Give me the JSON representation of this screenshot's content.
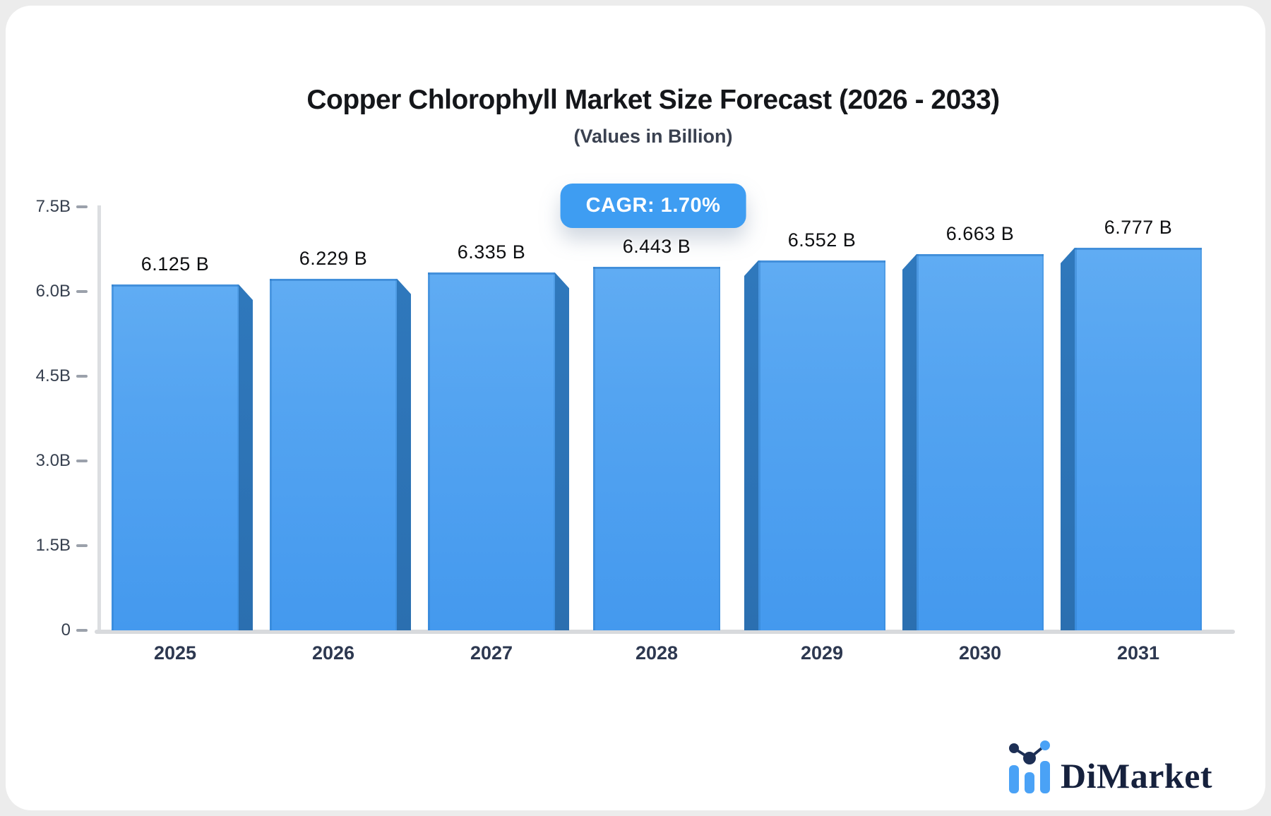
{
  "page": {
    "background": "#ececec",
    "card_background": "#ffffff"
  },
  "header": {
    "title": "Copper Chlorophyll Market Size Forecast (2026 - 2033)",
    "subtitle": "(Values in Billion)",
    "cagr_label": "CAGR: 1.70%"
  },
  "brand": {
    "name": "DiMarket"
  },
  "colors": {
    "bar_face_top": "#60acf3",
    "bar_face_bottom": "#4499ee",
    "bar_side": "#2d73b6",
    "badge_background": "#3e9df2",
    "axis_line": "#dcdee1",
    "tick_dash": "#9ba1ab",
    "logo_bar_blue": "#4aa2f6",
    "logo_navy": "#1d2f55"
  },
  "chart_data": {
    "type": "bar",
    "title": "Copper Chlorophyll Market Size Forecast (2026 - 2033)",
    "subtitle": "(Values in Billion)",
    "unit": "Billion",
    "cagr": "1.70%",
    "categories": [
      "2025",
      "2026",
      "2027",
      "2028",
      "2029",
      "2030",
      "2031"
    ],
    "values": [
      6.125,
      6.229,
      6.335,
      6.443,
      6.552,
      6.663,
      6.777
    ],
    "value_labels": [
      "6.125 B",
      "6.229 B",
      "6.335 B",
      "6.443 B",
      "6.552 B",
      "6.663 B",
      "6.777 B"
    ],
    "yticks": [
      {
        "value": 0,
        "label": "0"
      },
      {
        "value": 1.5,
        "label": "1.5B"
      },
      {
        "value": 3,
        "label": "3.0B"
      },
      {
        "value": 4.5,
        "label": "4.5B"
      },
      {
        "value": 6,
        "label": "6.0B"
      },
      {
        "value": 7.5,
        "label": "7.5B"
      }
    ],
    "ylim": [
      0,
      7.5
    ],
    "grid": false,
    "legend": null
  }
}
